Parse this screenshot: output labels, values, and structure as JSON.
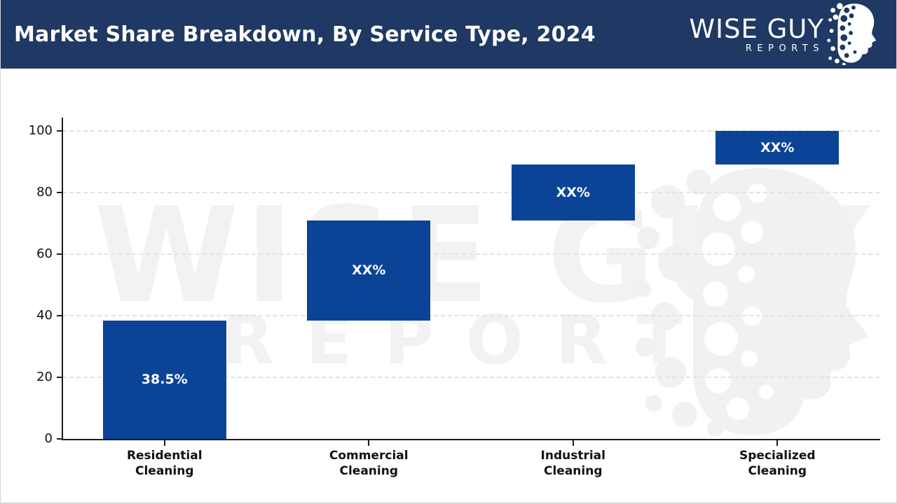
{
  "header": {
    "title": "Market Share Breakdown, By Service Type, 2024",
    "bg_color": "#1F3864",
    "logo": {
      "line1": "WISE GUY",
      "line2": "REPORTS"
    }
  },
  "watermark": {
    "line1": "WISE GUY",
    "line2": "REPORTS"
  },
  "chart_data": {
    "type": "bar",
    "subtype": "waterfall",
    "title": "Market Share Breakdown, By Service Type, 2024",
    "categories": [
      "Residential\nCleaning",
      "Commercial\nCleaning",
      "Industrial\nCleaning",
      "Specialized\nCleaning"
    ],
    "segments": [
      {
        "category": "Residential Cleaning",
        "start": 0,
        "end": 38.5,
        "value": 38.5,
        "label": "38.5%"
      },
      {
        "category": "Commercial Cleaning",
        "start": 38.5,
        "end": 71,
        "value": 32.5,
        "label": "XX%"
      },
      {
        "category": "Industrial Cleaning",
        "start": 71,
        "end": 89,
        "value": 18,
        "label": "XX%"
      },
      {
        "category": "Specialized Cleaning",
        "start": 89,
        "end": 100,
        "value": 11,
        "label": "XX%"
      }
    ],
    "yticks": [
      0,
      20,
      40,
      60,
      80,
      100
    ],
    "ylim": [
      0,
      104.3
    ],
    "xlabel": "",
    "ylabel": "",
    "legend": "none",
    "grid": "horizontal-dashed",
    "bar_color": "#0B4397",
    "bar_label_color": "#ffffff",
    "axis_color": "#1c1c1c",
    "grid_color": "#e2e2e2"
  }
}
